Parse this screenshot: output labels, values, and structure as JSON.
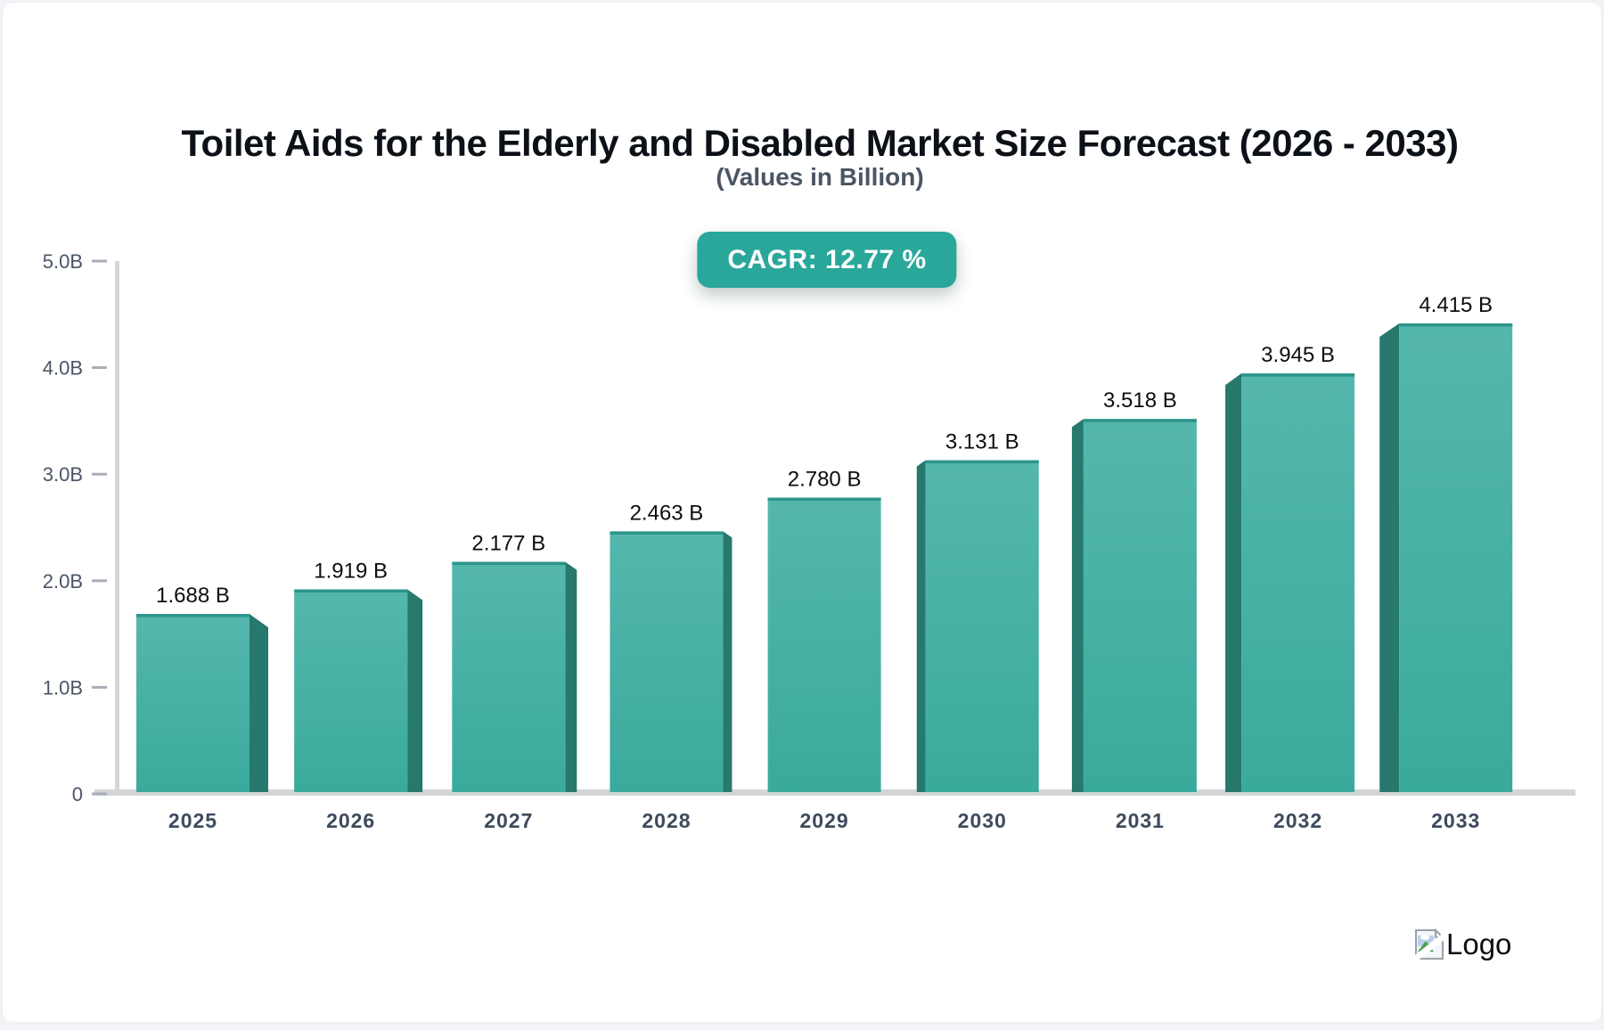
{
  "page": {
    "background": "#f1f3f6",
    "card_background": "#ffffff"
  },
  "header": {
    "title": "Toilet Aids for the Elderly and Disabled Market Size Forecast (2026 - 2033)",
    "subtitle": "(Values in Billion)"
  },
  "badge": {
    "label": "CAGR: 12.77 %",
    "background": "#2aa79b",
    "text_color": "#ffffff"
  },
  "chart_data": {
    "type": "bar",
    "title": "Toilet Aids for the Elderly and Disabled Market Size Forecast (2026 - 2033)",
    "subtitle": "(Values in Billion)",
    "unit": "Billion",
    "cagr_percent": 12.77,
    "categories": [
      "2025",
      "2026",
      "2027",
      "2028",
      "2029",
      "2030",
      "2031",
      "2032",
      "2033"
    ],
    "values": [
      1.688,
      1.919,
      2.177,
      2.463,
      2.78,
      3.131,
      3.518,
      3.945,
      4.415
    ],
    "value_labels": [
      "1.688 B",
      "1.919 B",
      "2.177 B",
      "2.463 B",
      "2.780 B",
      "3.131 B",
      "3.518 B",
      "3.945 B",
      "4.415 B"
    ],
    "y_ticks": [
      {
        "value": 0,
        "label": "0"
      },
      {
        "value": 1,
        "label": "1.0B"
      },
      {
        "value": 2,
        "label": "2.0B"
      },
      {
        "value": 3,
        "label": "3.0B"
      },
      {
        "value": 4,
        "label": "4.0B"
      },
      {
        "value": 5,
        "label": "5.0B"
      }
    ],
    "ylim": [
      0,
      5
    ],
    "grid": false,
    "legend": false,
    "bar_front_color_top": "#55b7ad",
    "bar_front_color_bottom": "#3aaa9c",
    "bar_top_rim_color": "#2c958a",
    "bar_side_color": "#27786d",
    "axis_color": "#d3d6d9",
    "tick_color": "#a9aeb6"
  },
  "logo": {
    "alt_text": "Logo"
  }
}
